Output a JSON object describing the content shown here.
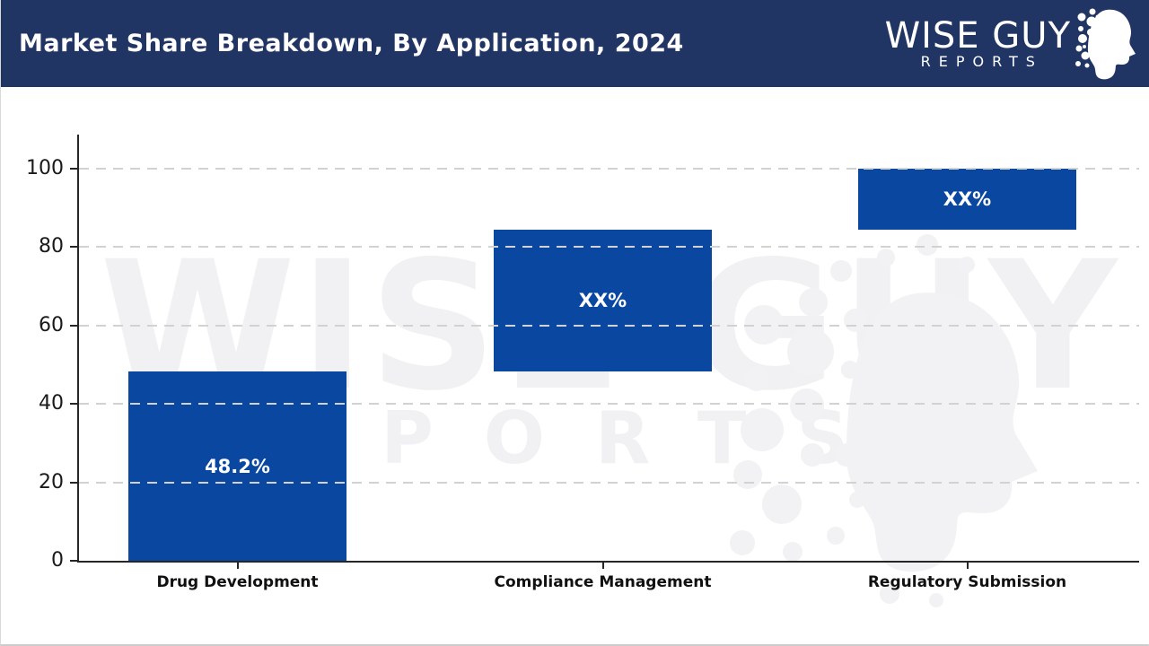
{
  "header": {
    "title": "Market Share Breakdown, By Application, 2024",
    "logo": {
      "line1": "WISE GUY",
      "line2": "REPORTS"
    }
  },
  "watermark": {
    "line1": "WISE GUY",
    "line2": "REPORTS"
  },
  "chart_data": {
    "type": "bar",
    "variant": "floating-range (waterfall-style market share breakdown)",
    "title": "Market Share Breakdown, By Application, 2024",
    "categories": [
      "Drug Development",
      "Compliance Management",
      "Regulatory Submission"
    ],
    "series": [
      {
        "name": "Market Share (%)",
        "ranges": [
          [
            0,
            48.2
          ],
          [
            48.2,
            84.3
          ],
          [
            84.3,
            100
          ]
        ]
      }
    ],
    "bar_labels": [
      "48.2%",
      "XX%",
      "XX%"
    ],
    "xlabel": "",
    "ylabel": "",
    "ylim": [
      0,
      100
    ],
    "yticks": [
      "0",
      "20",
      "40",
      "60",
      "80",
      "100"
    ],
    "ytick_values": [
      0,
      20,
      40,
      60,
      80,
      100
    ],
    "grid": "horizontal dashed, drawn over bars",
    "legend": "none",
    "colors": {
      "header_bg": "#203564",
      "bar": "#0a47a1",
      "axis": "#262626",
      "grid": "#d2d2d2",
      "watermark": "#f1f1f4",
      "label_on_bar": "#ffffff"
    }
  }
}
